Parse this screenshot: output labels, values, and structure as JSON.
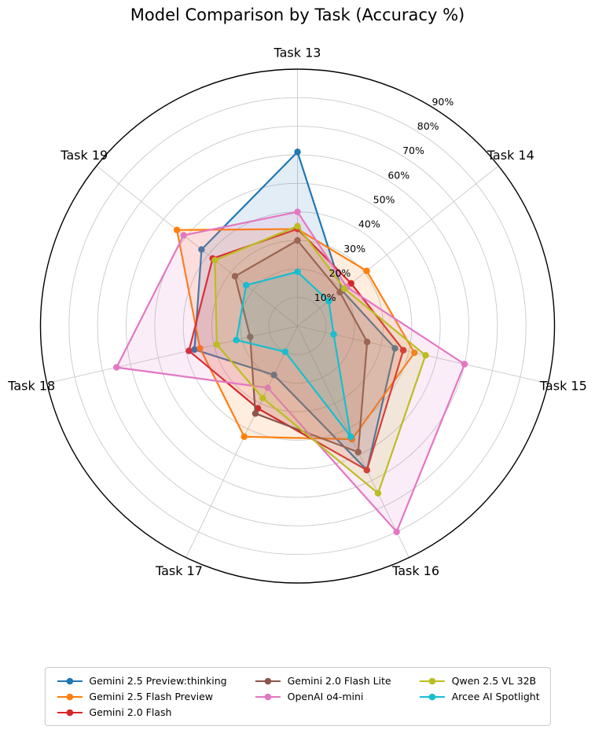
{
  "title": "Model Comparison by Task (Accuracy %)",
  "chart_data": {
    "type": "radar",
    "title": "Model Comparison by Task (Accuracy %)",
    "categories": [
      "Task 13",
      "Task 14",
      "Task 15",
      "Task 16",
      "Task 17",
      "Task 18",
      "Task 19"
    ],
    "series": [
      {
        "name": "Gemini 2.5 Preview:thinking",
        "color": "#1f77b4",
        "values": [
          61,
          20,
          35,
          56,
          19,
          37,
          43
        ]
      },
      {
        "name": "Gemini 2.5 Flash Preview",
        "color": "#ff7f0e",
        "values": [
          34,
          31,
          42,
          44,
          43,
          35,
          54
        ]
      },
      {
        "name": "Gemini 2.0 Flash",
        "color": "#d62728",
        "values": [
          34,
          24,
          38,
          56,
          32,
          39,
          38
        ]
      },
      {
        "name": "Gemini 2.0 Flash Lite",
        "color": "#8c564b",
        "values": [
          30,
          19,
          25,
          49,
          34,
          17,
          28
        ]
      },
      {
        "name": "OpenAI o4-mini",
        "color": "#e377c2",
        "values": [
          40,
          22,
          60,
          80,
          24,
          65,
          51
        ]
      },
      {
        "name": "Qwen 2.5 VL 32B",
        "color": "#bcbd22",
        "values": [
          35,
          21,
          46,
          65,
          28,
          29,
          37
        ]
      },
      {
        "name": "Arcee AI Spotlight",
        "color": "#17becf",
        "values": [
          19,
          14,
          13,
          43,
          10,
          22,
          23
        ]
      }
    ],
    "r_axis": {
      "ticks": [
        "10%",
        "20%",
        "30%",
        "40%",
        "50%",
        "60%",
        "70%",
        "80%",
        "90%"
      ],
      "max": 90
    },
    "grid": true,
    "legend_position": "bottom",
    "legend_columns": [
      3,
      2,
      2
    ]
  }
}
